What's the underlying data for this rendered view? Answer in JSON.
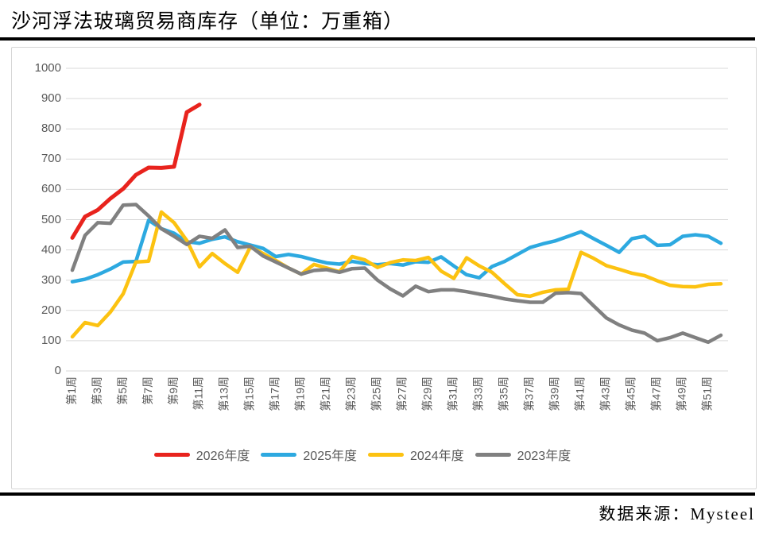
{
  "title": "沙河浮法玻璃贸易商库存（单位：万重箱）",
  "source_note": "数据来源：Mysteel",
  "colors": {
    "red": "#e8231d",
    "blue": "#2da9e0",
    "yellow": "#fcc211",
    "gray": "#808080",
    "grid": "#d9d9d9",
    "axis_text": "#595959",
    "panel_border": "#d6d6d6",
    "divider": "#000000"
  },
  "chart_data": {
    "type": "line",
    "title": "沙河浮法玻璃贸易商库存（单位：万重箱）",
    "ylim": [
      0,
      1000
    ],
    "y_ticks": [
      0,
      100,
      200,
      300,
      400,
      500,
      600,
      700,
      800,
      900,
      1000
    ],
    "x_unit": "周",
    "x_tick_labels": [
      "第1周",
      "第3周",
      "第5周",
      "第7周",
      "第9周",
      "第11周",
      "第13周",
      "第15周",
      "第17周",
      "第19周",
      "第21周",
      "第23周",
      "第25周",
      "第27周",
      "第29周",
      "第31周",
      "第33周",
      "第35周",
      "第37周",
      "第39周",
      "第41周",
      "第43周",
      "第45周",
      "第47周",
      "第49周",
      "第51周"
    ],
    "grid": true,
    "legend_position": "bottom",
    "series": [
      {
        "name": "2026年度",
        "color": "#e8231d",
        "start_week": 1,
        "values": [
          440,
          510,
          532,
          570,
          602,
          648,
          672,
          671,
          675,
          855,
          880
        ]
      },
      {
        "name": "2025年度",
        "color": "#2da9e0",
        "start_week": 1,
        "values": [
          295,
          303,
          318,
          337,
          360,
          362,
          498,
          470,
          455,
          427,
          422,
          435,
          443,
          427,
          416,
          405,
          378,
          385,
          378,
          367,
          357,
          353,
          362,
          355,
          351,
          355,
          350,
          361,
          359,
          377,
          347,
          318,
          308,
          345,
          362,
          385,
          408,
          420,
          430,
          445,
          460,
          437,
          415,
          392,
          437,
          445,
          415,
          417,
          445,
          450,
          445,
          422
        ]
      },
      {
        "name": "2024年度",
        "color": "#fcc211",
        "start_week": 1,
        "values": [
          113,
          160,
          150,
          195,
          255,
          360,
          363,
          525,
          490,
          431,
          344,
          388,
          355,
          326,
          410,
          388,
          365,
          340,
          320,
          352,
          340,
          328,
          378,
          367,
          342,
          358,
          367,
          365,
          375,
          330,
          306,
          374,
          347,
          326,
          288,
          252,
          247,
          260,
          268,
          270,
          392,
          372,
          348,
          336,
          323,
          315,
          298,
          283,
          279,
          278,
          286,
          288
        ]
      },
      {
        "name": "2023年度",
        "color": "#808080",
        "start_week": 1,
        "values": [
          333,
          448,
          490,
          488,
          548,
          550,
          512,
          470,
          445,
          418,
          445,
          438,
          466,
          408,
          412,
          380,
          360,
          340,
          320,
          332,
          335,
          326,
          338,
          340,
          300,
          271,
          248,
          280,
          262,
          268,
          268,
          262,
          254,
          247,
          238,
          232,
          227,
          227,
          257,
          259,
          256,
          215,
          175,
          152,
          135,
          125,
          100,
          110,
          125,
          110,
          95,
          118
        ]
      }
    ]
  }
}
